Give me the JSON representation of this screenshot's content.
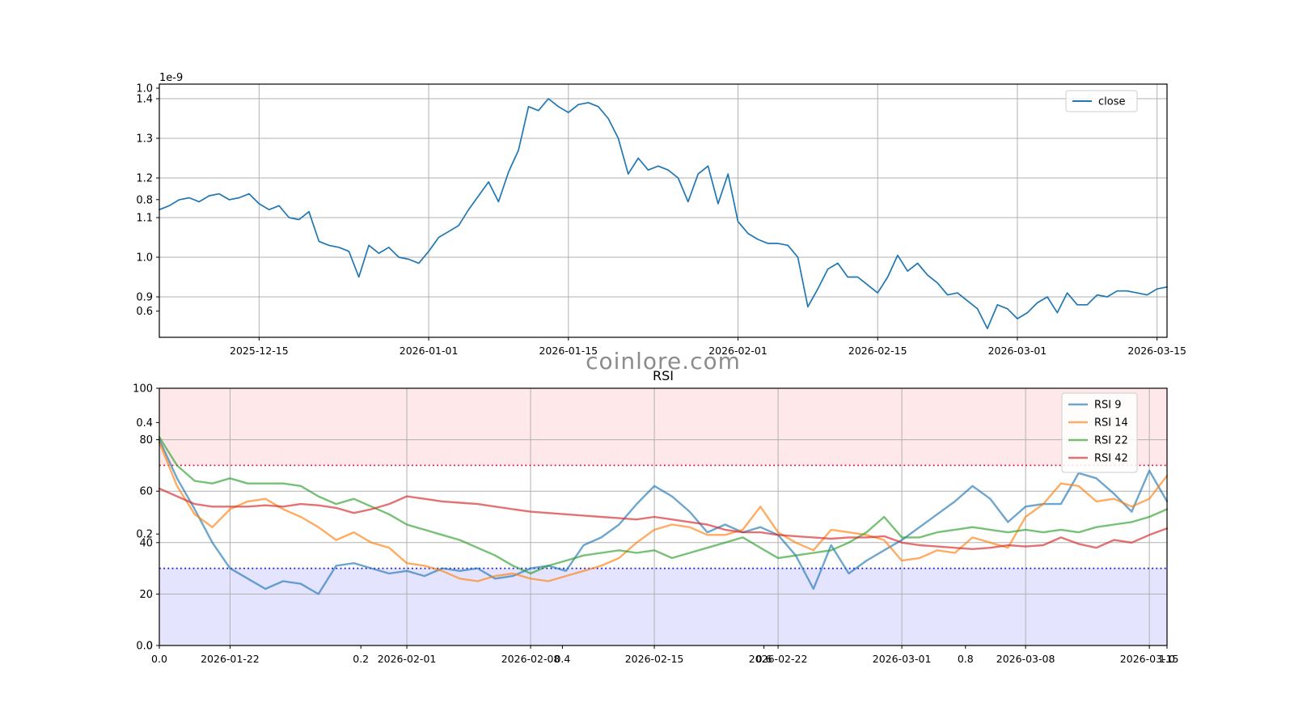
{
  "watermark": "coinlore.com",
  "overlay_axis": {
    "x_tick_labels": [
      "0.0",
      "0.2",
      "0.4",
      "0.6",
      "0.8",
      "1.0"
    ],
    "y_tick_labels": [
      "1.0",
      "0.8",
      "0.6",
      "0.4",
      "0.2",
      "0.0"
    ]
  },
  "chart_data": [
    {
      "type": "line",
      "name": "price",
      "title": "",
      "y_offset_label": "1e-9",
      "ylim": [
        0.798,
        1.4367
      ],
      "grid": true,
      "legend_position": "upper right",
      "legend": [
        {
          "label": "close",
          "color": "#1f77b4"
        }
      ],
      "x_tick_labels": [
        "2025-12-15",
        "2026-01-01",
        "2026-01-15",
        "2026-02-01",
        "2026-02-15",
        "2026-03-01",
        "2026-03-15"
      ],
      "x_tick_index": [
        10,
        27,
        41,
        58,
        72,
        86,
        100
      ],
      "y_tick_labels": [
        "1.4",
        "1.3",
        "1.2",
        "1.1",
        "1.0",
        "0.9"
      ],
      "y_tick_values": [
        1.4,
        1.3,
        1.2,
        1.1,
        1.0,
        0.9
      ],
      "x_start": "2025-12-05",
      "x_end": "2026-03-16",
      "series": [
        {
          "name": "close",
          "color": "#1f77b4",
          "width": 1.7,
          "values": [
            1.12,
            1.13,
            1.145,
            1.15,
            1.14,
            1.155,
            1.16,
            1.145,
            1.15,
            1.16,
            1.135,
            1.12,
            1.13,
            1.1,
            1.095,
            1.115,
            1.04,
            1.03,
            1.025,
            1.015,
            0.95,
            1.03,
            1.01,
            1.025,
            1.0,
            0.995,
            0.985,
            1.015,
            1.05,
            1.065,
            1.08,
            1.12,
            1.155,
            1.19,
            1.14,
            1.215,
            1.27,
            1.38,
            1.37,
            1.4,
            1.38,
            1.365,
            1.385,
            1.39,
            1.38,
            1.35,
            1.3,
            1.21,
            1.25,
            1.22,
            1.23,
            1.22,
            1.2,
            1.14,
            1.21,
            1.23,
            1.135,
            1.21,
            1.09,
            1.06,
            1.045,
            1.035,
            1.035,
            1.03,
            1.0,
            0.875,
            0.92,
            0.97,
            0.985,
            0.95,
            0.95,
            0.93,
            0.91,
            0.95,
            1.005,
            0.965,
            0.985,
            0.955,
            0.935,
            0.905,
            0.91,
            0.89,
            0.87,
            0.82,
            0.88,
            0.87,
            0.845,
            0.86,
            0.885,
            0.9,
            0.86,
            0.91,
            0.88,
            0.88,
            0.905,
            0.9,
            0.915,
            0.915,
            0.91,
            0.905,
            0.92,
            0.925
          ]
        }
      ]
    },
    {
      "type": "line",
      "name": "rsi",
      "title": "RSI",
      "ylim": [
        0,
        100
      ],
      "grid": true,
      "legend_position": "upper right",
      "overbought_level": 70,
      "oversold_level": 30,
      "hlines": [
        {
          "value": 70,
          "color": "#dc143c",
          "style": "dotted"
        },
        {
          "value": 30,
          "color": "#1414cc",
          "style": "dotted"
        }
      ],
      "bands": [
        {
          "from": 70,
          "to": 100,
          "color": "rgba(255,30,50,0.10)"
        },
        {
          "from": 0,
          "to": 30,
          "color": "rgba(50,50,255,0.13)"
        }
      ],
      "x_tick_labels": [
        "2026-01-22",
        "2026-02-01",
        "2026-02-08",
        "2026-02-15",
        "2026-02-22",
        "2026-03-01",
        "2026-03-08",
        "2026-03-15"
      ],
      "x_tick_index": [
        4,
        14,
        21,
        28,
        35,
        42,
        49,
        56
      ],
      "y_tick_labels": [
        "100",
        "80",
        "60",
        "40",
        "20",
        "0"
      ],
      "y_tick_values": [
        100,
        80,
        60,
        40,
        20,
        0
      ],
      "x_start": "2026-01-18",
      "x_end": "2026-03-16",
      "legend": [
        {
          "label": "RSI 9",
          "color": "rgba(31,119,180,0.65)"
        },
        {
          "label": "RSI 14",
          "color": "rgba(255,127,14,0.65)"
        },
        {
          "label": "RSI 22",
          "color": "rgba(44,160,44,0.65)"
        },
        {
          "label": "RSI 42",
          "color": "rgba(214,39,40,0.65)"
        }
      ],
      "series": [
        {
          "name": "RSI 9",
          "color": "rgba(31,119,180,0.65)",
          "width": 2.4,
          "values": [
            80,
            65,
            53,
            40,
            30,
            26,
            22,
            25,
            24,
            20,
            31,
            32,
            30,
            28,
            29,
            27,
            30,
            29,
            30,
            26,
            27,
            30,
            31,
            29,
            39,
            42,
            47,
            55,
            62,
            58,
            52,
            44,
            47,
            44,
            46,
            43,
            35,
            22,
            39,
            28,
            33,
            37,
            41,
            46,
            51,
            56,
            62,
            57,
            48,
            54,
            55,
            55,
            67,
            65,
            59,
            52,
            68,
            56
          ]
        },
        {
          "name": "RSI 14",
          "color": "rgba(255,127,14,0.65)",
          "width": 2.4,
          "values": [
            79,
            62,
            51,
            46,
            53,
            56,
            57,
            53,
            50,
            46,
            41,
            44,
            40,
            38,
            32,
            31,
            29,
            26,
            25,
            27,
            28,
            26,
            25,
            27,
            29,
            31,
            34,
            40,
            45,
            47,
            46,
            43,
            43,
            45,
            54,
            44,
            40,
            37,
            45,
            44,
            43,
            41,
            33,
            34,
            37,
            36,
            42,
            40,
            38,
            50,
            55,
            63,
            62,
            56,
            57,
            54,
            57,
            66
          ]
        },
        {
          "name": "RSI 22",
          "color": "rgba(44,160,44,0.65)",
          "width": 2.4,
          "values": [
            81,
            70,
            64,
            63,
            65,
            63,
            63,
            63,
            62,
            58,
            55,
            57,
            54,
            51,
            47,
            45,
            43,
            41,
            38,
            35,
            31,
            28,
            31,
            33,
            35,
            36,
            37,
            36,
            37,
            34,
            36,
            38,
            40,
            42,
            38,
            34,
            35,
            36,
            37,
            40,
            44,
            50,
            42,
            42,
            44,
            45,
            46,
            45,
            44,
            45,
            44,
            45,
            44,
            46,
            47,
            48,
            50,
            53
          ]
        },
        {
          "name": "RSI 42",
          "color": "rgba(214,39,40,0.65)",
          "width": 2.4,
          "values": [
            61,
            58,
            55,
            54,
            54,
            54,
            54.5,
            54,
            55,
            54.5,
            53.5,
            51.5,
            53,
            55,
            58,
            57,
            56,
            55.5,
            55,
            54,
            53,
            52,
            51.5,
            51,
            50.5,
            50,
            49.5,
            49,
            50,
            49,
            48,
            47,
            45,
            44,
            44,
            43,
            42.5,
            42,
            41.5,
            42,
            42,
            42.5,
            40,
            39,
            38.5,
            38,
            37.5,
            38,
            39,
            38.5,
            39,
            42,
            39.5,
            38,
            41,
            40,
            43,
            45.5
          ]
        }
      ]
    }
  ]
}
